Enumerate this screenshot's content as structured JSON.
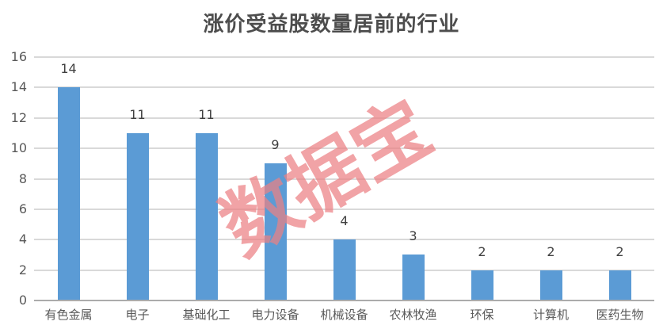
{
  "title": "涨价受益股数量居前的行业",
  "watermark": {
    "text": "数据宝",
    "color": "#ec8184",
    "opacity": 0.72,
    "rotation_deg": -30
  },
  "colors": {
    "bar": "#5b9bd5",
    "gridline": "#d9d9d9",
    "axis_line": "#ababab",
    "tick_label": "#595959",
    "category_label": "#595959",
    "data_label": "#3f3f3f",
    "title": "#4d4d4d"
  },
  "chart_data": {
    "type": "bar",
    "title": "涨价受益股数量居前的行业",
    "categories": [
      "有色金属",
      "电子",
      "基础化工",
      "电力设备",
      "机械设备",
      "农林牧渔",
      "环保",
      "计算机",
      "医药生物"
    ],
    "values": [
      14,
      11,
      11,
      9,
      4,
      3,
      2,
      2,
      2
    ],
    "xlabel": "",
    "ylabel": "",
    "ylim": [
      0,
      16
    ],
    "ytick_step": 2,
    "yticks": [
      0,
      2,
      4,
      6,
      8,
      10,
      12,
      14,
      16
    ],
    "grid": true,
    "legend": false,
    "data_labels": true
  }
}
